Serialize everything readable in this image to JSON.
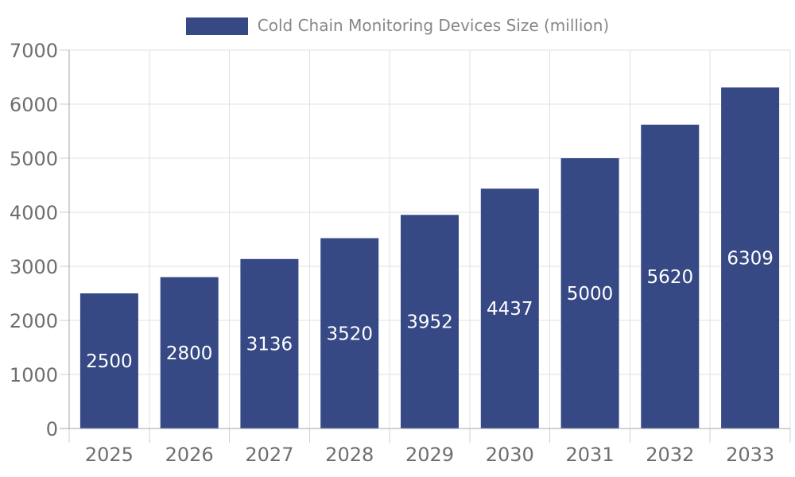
{
  "legend": {
    "label": "Cold Chain Monitoring Devices Size (million)"
  },
  "chart_data": {
    "type": "bar",
    "title": "Cold Chain Monitoring Devices Size (million)",
    "series_name": "Cold Chain Monitoring Devices Size (million)",
    "categories": [
      "2025",
      "2026",
      "2027",
      "2028",
      "2029",
      "2030",
      "2031",
      "2032",
      "2033"
    ],
    "values": [
      2500,
      2800,
      3136,
      3520,
      3952,
      4437,
      5000,
      5620,
      6309
    ],
    "xlabel": "",
    "ylabel": "",
    "ylim": [
      0,
      7000
    ],
    "yticks": [
      0,
      1000,
      2000,
      3000,
      4000,
      5000,
      6000,
      7000
    ],
    "grid": true,
    "legend_position": "top-center",
    "bar_labels_position": "inside-center",
    "colors": {
      "bar": "#364985",
      "bar_label": "#ffffff",
      "grid": "#e0e0e0",
      "tick": "#cfcfcf",
      "axis_line": "#a6a6a6",
      "axis_text": "#6e6e6e",
      "legend_text": "#878787",
      "background": "#ffffff"
    }
  }
}
